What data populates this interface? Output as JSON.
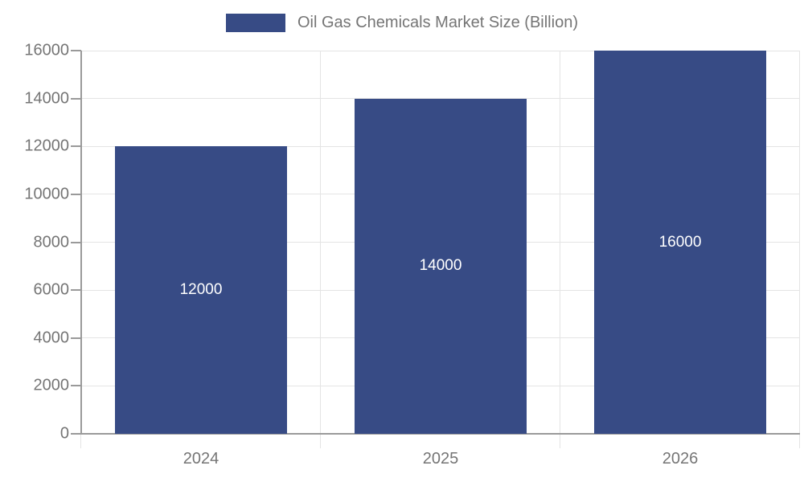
{
  "legend": {
    "label": "Oil Gas Chemicals Market Size (Billion)"
  },
  "chart_data": {
    "type": "bar",
    "title": "Oil Gas Chemicals Market Size (Billion)",
    "categories": [
      "2024",
      "2025",
      "2026"
    ],
    "values": [
      12000,
      14000,
      16000
    ],
    "value_labels": [
      "12000",
      "14000",
      "16000"
    ],
    "xlabel": "",
    "ylabel": "",
    "ylim": [
      0,
      16000
    ],
    "yticks": [
      0,
      2000,
      4000,
      6000,
      8000,
      10000,
      12000,
      14000,
      16000
    ],
    "ytick_labels": [
      "0",
      "2000",
      "4000",
      "6000",
      "8000",
      "10000",
      "12000",
      "14000",
      "16000"
    ],
    "grid": true,
    "legend_position": "top-center",
    "bar_color": "#374b85",
    "value_label_color": "#ffffff",
    "axis_color": "#9a9a9a",
    "gridline_color": "#e4e4e4",
    "tick_label_color": "#757575",
    "background_color": "#ffffff"
  }
}
